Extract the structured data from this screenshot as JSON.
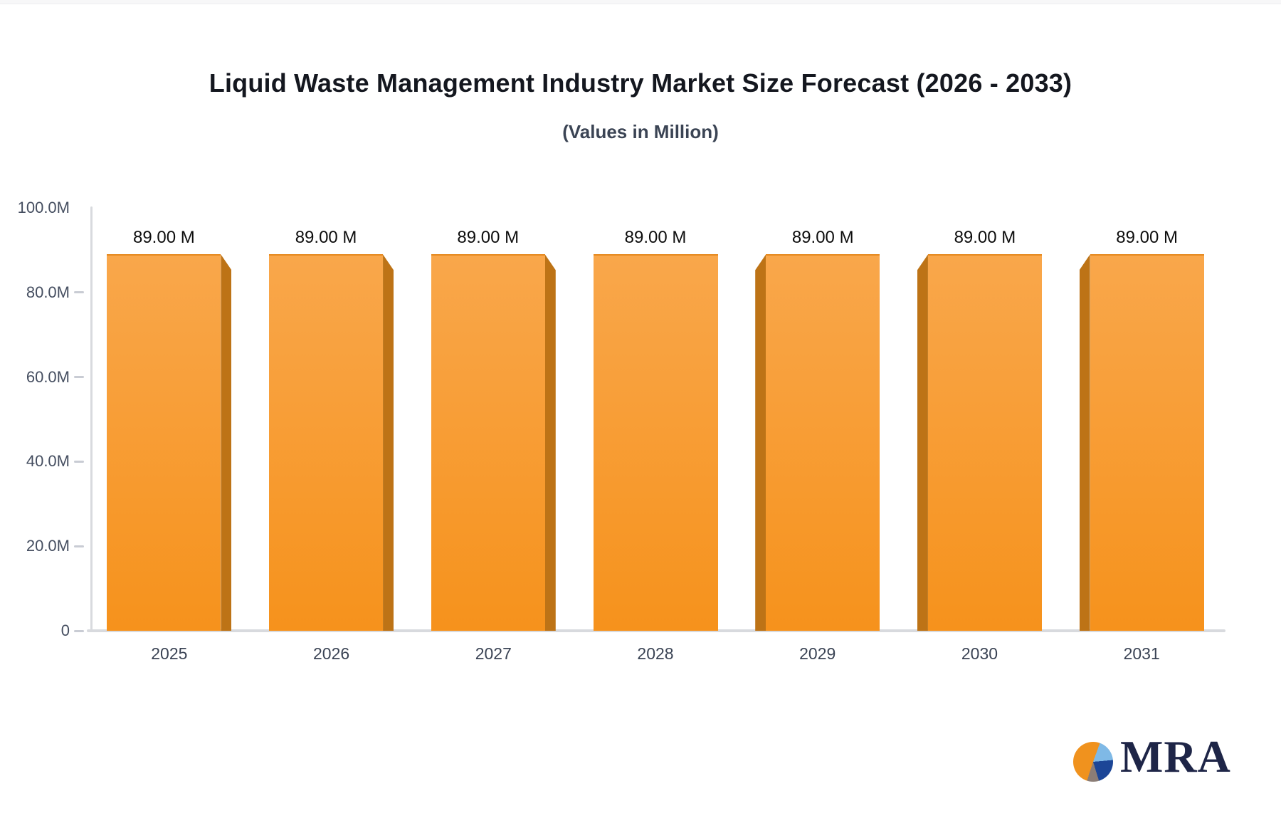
{
  "header": {
    "top_strip_color": "#f7f7f8"
  },
  "chart_data": {
    "type": "bar",
    "title": "Liquid Waste Management Industry Market Size Forecast (2026 - 2033)",
    "subtitle": "(Values in Million)",
    "categories": [
      "2025",
      "2026",
      "2027",
      "2028",
      "2029",
      "2030",
      "2031"
    ],
    "values": [
      89,
      89,
      89,
      89,
      89,
      89,
      89
    ],
    "value_labels": [
      "89.00 M",
      "89.00 M",
      "89.00 M",
      "89.00 M",
      "89.00 M",
      "89.00 M",
      "89.00 M"
    ],
    "unit": "Million",
    "xlabel": "",
    "ylabel": "",
    "ylim": [
      0,
      100
    ],
    "yticks": [
      {
        "label": "100.0M",
        "value": 100
      },
      {
        "label": "80.0M",
        "value": 80
      },
      {
        "label": "60.0M",
        "value": 60
      },
      {
        "label": "40.0M",
        "value": 40
      },
      {
        "label": "20.0M",
        "value": 20
      },
      {
        "label": "0",
        "value": 0
      }
    ],
    "grid": false,
    "legend": false,
    "bar_style": {
      "fill_top": "#f9a74b",
      "fill_bottom": "#f6921c",
      "side_fill": "#bd7316",
      "effect": "3d-perspective: left bars show right face, right bars show left face, center bar flat"
    },
    "axis_color": "#d8dade",
    "tick_text_color": "#454e60",
    "category_text_color": "#3a4354",
    "value_text_color": "#0d0d0d"
  },
  "logo": {
    "text": "MRA",
    "text_color": "#1e2547",
    "pie_slices": {
      "orange": "#f0921e",
      "light_blue": "#7fb9e6",
      "navy": "#1c4697",
      "gray": "#8b7d76"
    }
  }
}
